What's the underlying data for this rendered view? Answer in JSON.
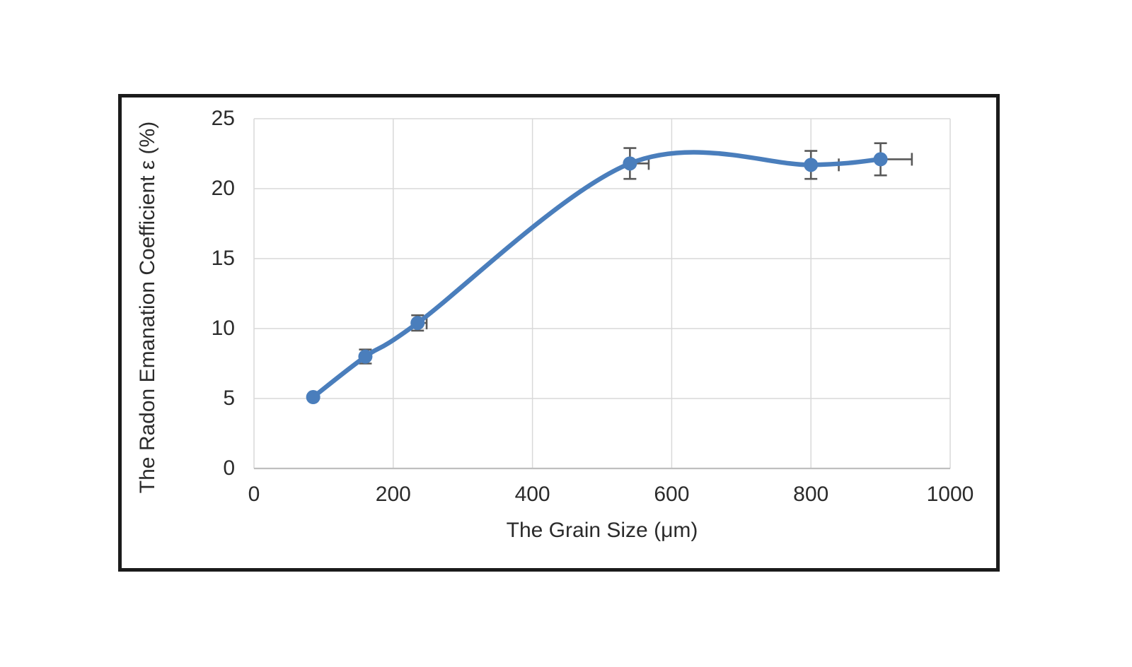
{
  "chart_data": {
    "type": "line",
    "title": "",
    "xlabel": "The Grain Size (μm)",
    "ylabel": "The Radon Emanation Coefficient ε (%)",
    "xlim": [
      0,
      1000
    ],
    "ylim": [
      0,
      25
    ],
    "xticks": [
      0,
      200,
      400,
      600,
      800,
      1000
    ],
    "yticks": [
      0,
      5,
      10,
      15,
      20,
      25
    ],
    "grid": true,
    "legend": false,
    "line_style": "smooth",
    "marker": "circle",
    "series": [
      {
        "name": "radon-emanation-vs-grain-size",
        "points": [
          {
            "x": 85,
            "y": 5.1,
            "y_err": 0,
            "x_err_plus": 0
          },
          {
            "x": 160,
            "y": 8.0,
            "y_err": 0.5,
            "x_err_plus": 0
          },
          {
            "x": 235,
            "y": 10.4,
            "y_err": 0.55,
            "x_err_plus": 13
          },
          {
            "x": 540,
            "y": 21.8,
            "y_err": 1.1,
            "x_err_plus": 27
          },
          {
            "x": 800,
            "y": 21.7,
            "y_err": 1.0,
            "x_err_plus": 40
          },
          {
            "x": 900,
            "y": 22.1,
            "y_err": 1.15,
            "x_err_plus": 45
          }
        ]
      }
    ],
    "colors": {
      "page_background": "#ffffff",
      "line": "#4a7ebc",
      "marker": "#4a7ebc",
      "error_bar": "#595959",
      "grid": "#d9d9d9",
      "axis_line": "#bfbfbf",
      "text": "#2b2b2b",
      "frame_border": "#1b1b1b"
    }
  }
}
